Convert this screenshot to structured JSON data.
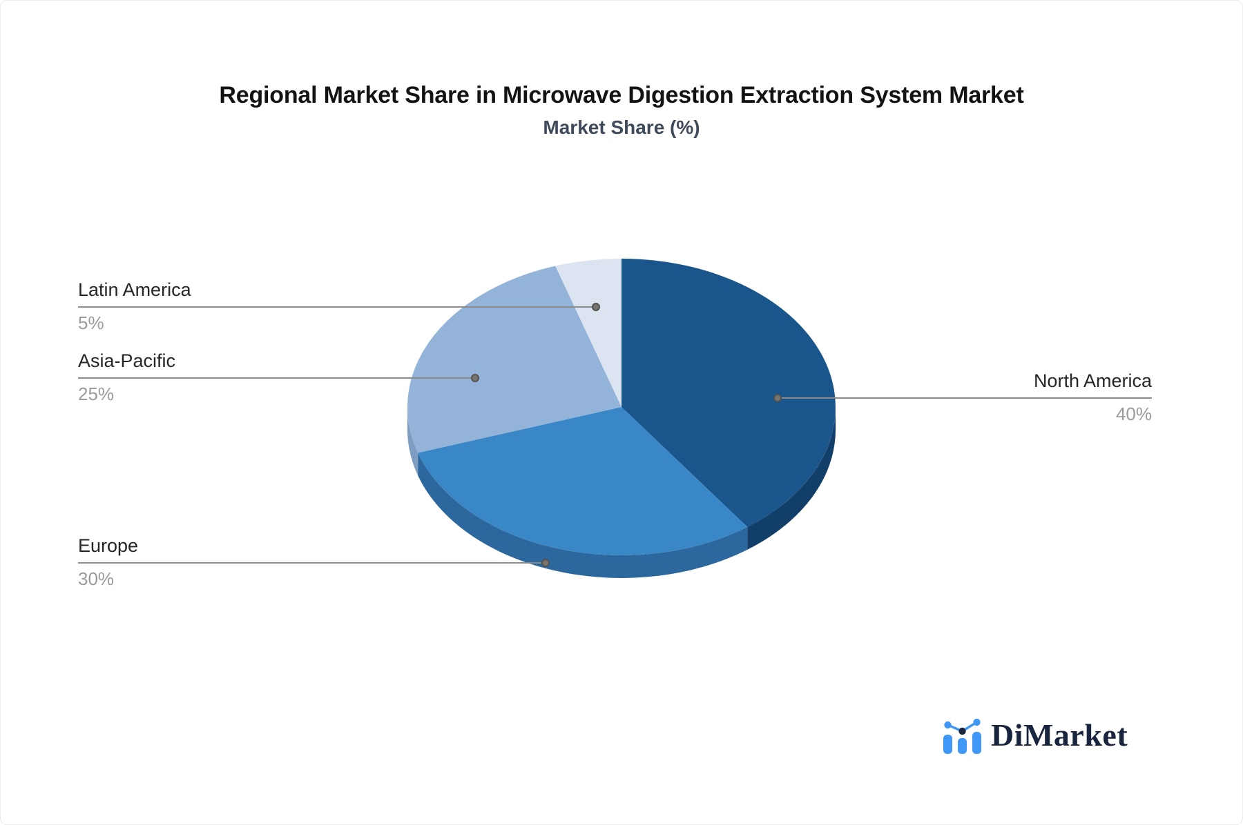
{
  "header": {
    "title": "Regional Market Share in Microwave Digestion Extraction System Market",
    "subtitle": "Market Share (%)"
  },
  "chart_data": {
    "type": "pie",
    "title": "Regional Market Share in Microwave Digestion Extraction System Market",
    "subtitle": "Market Share (%)",
    "unit": "%",
    "style": "3d-pie",
    "start_angle_deg": 0,
    "direction": "clockwise",
    "legend_position": "callout-labels",
    "slices": [
      {
        "label": "North America",
        "value": 40,
        "color": "#1a568c",
        "side_color": "#123f69"
      },
      {
        "label": "Europe",
        "value": 30,
        "color": "#3a87c8",
        "side_color": "#2c689e"
      },
      {
        "label": "Asia-Pacific",
        "value": 25,
        "color": "#93b3d9",
        "side_color": "#7f9dc0"
      },
      {
        "label": "Latin America",
        "value": 5,
        "color": "#dde4f1",
        "side_color": "#c6cfe0"
      }
    ]
  },
  "callouts": {
    "north_america": {
      "label": "North America",
      "percent": "40%"
    },
    "europe": {
      "label": "Europe",
      "percent": "30%"
    },
    "asia_pacific": {
      "label": "Asia-Pacific",
      "percent": "25%"
    },
    "latin_america": {
      "label": "Latin America",
      "percent": "5%"
    }
  },
  "branding": {
    "logo_text": "DiMarket",
    "logo_icon": "bar-chart-with-trend-icon",
    "logo_blue": "#3f97f6",
    "logo_navy": "#19253f"
  },
  "palette": {
    "title_text": "#111315",
    "subtitle_text": "#3e4a5a",
    "label_text": "#262626",
    "percent_text": "#9b9b9b",
    "leader_line": "#8b8b8b",
    "leader_dot": "#76756f",
    "background": "#ffffff"
  }
}
